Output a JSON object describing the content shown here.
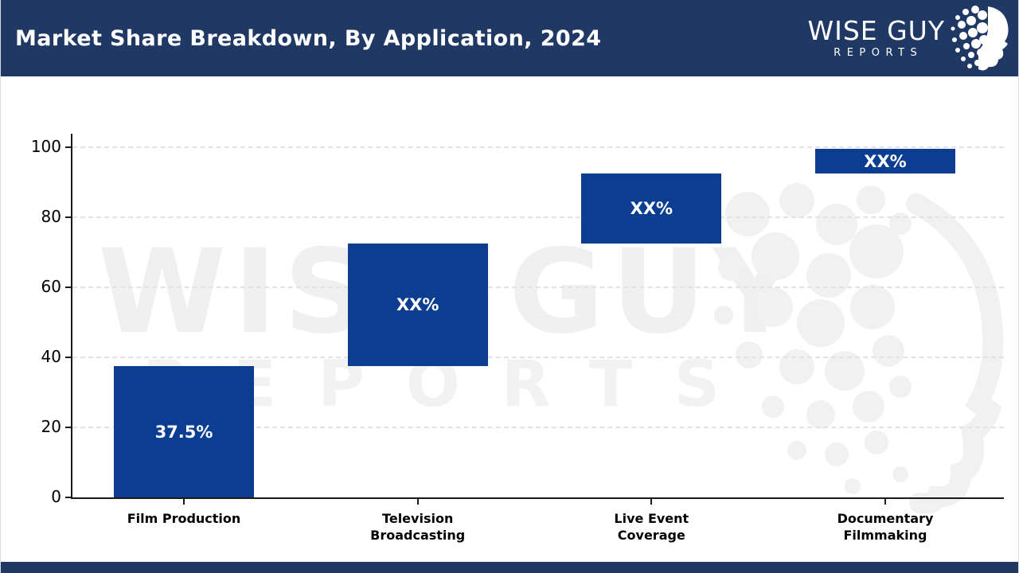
{
  "header": {
    "title": "Market Share Breakdown, By Application, 2024",
    "bg_color": "#1f3864",
    "logo": {
      "name": "WISE GUY",
      "sub": "REPORTS"
    }
  },
  "watermark": {
    "line1": "WISE GUY",
    "line2": "REPORTS"
  },
  "chart_data": {
    "type": "bar",
    "variant": "waterfall-floating-bars",
    "title": "Market Share Breakdown, By Application, 2024",
    "categories": [
      "Film Production",
      "Television Broadcasting",
      "Live Event Coverage",
      "Documentary Filmmaking"
    ],
    "category_lines": [
      [
        "Film Production"
      ],
      [
        "Television",
        "Broadcasting"
      ],
      [
        "Live Event",
        "Coverage"
      ],
      [
        "Documentary",
        "Filmmaking"
      ]
    ],
    "segments": [
      {
        "category": "Film Production",
        "start": 0,
        "end": 37.5,
        "value_label": "37.5%"
      },
      {
        "category": "Television Broadcasting",
        "start": 37.5,
        "end": 72.5,
        "value_label": "XX%"
      },
      {
        "category": "Live Event Coverage",
        "start": 72.5,
        "end": 92.5,
        "value_label": "XX%"
      },
      {
        "category": "Documentary Filmmaking",
        "start": 92.5,
        "end": 99.5,
        "value_label": "XX%"
      }
    ],
    "xlabel": "",
    "ylabel": "",
    "ylim": [
      0,
      100
    ],
    "yticks": [
      0,
      20,
      40,
      60,
      80,
      100
    ],
    "grid": "horizontal dashed",
    "legend": "none",
    "bar_color": "#0b3e91",
    "value_label_color": "#ffffff",
    "axis_color": "#1a1a1a"
  }
}
